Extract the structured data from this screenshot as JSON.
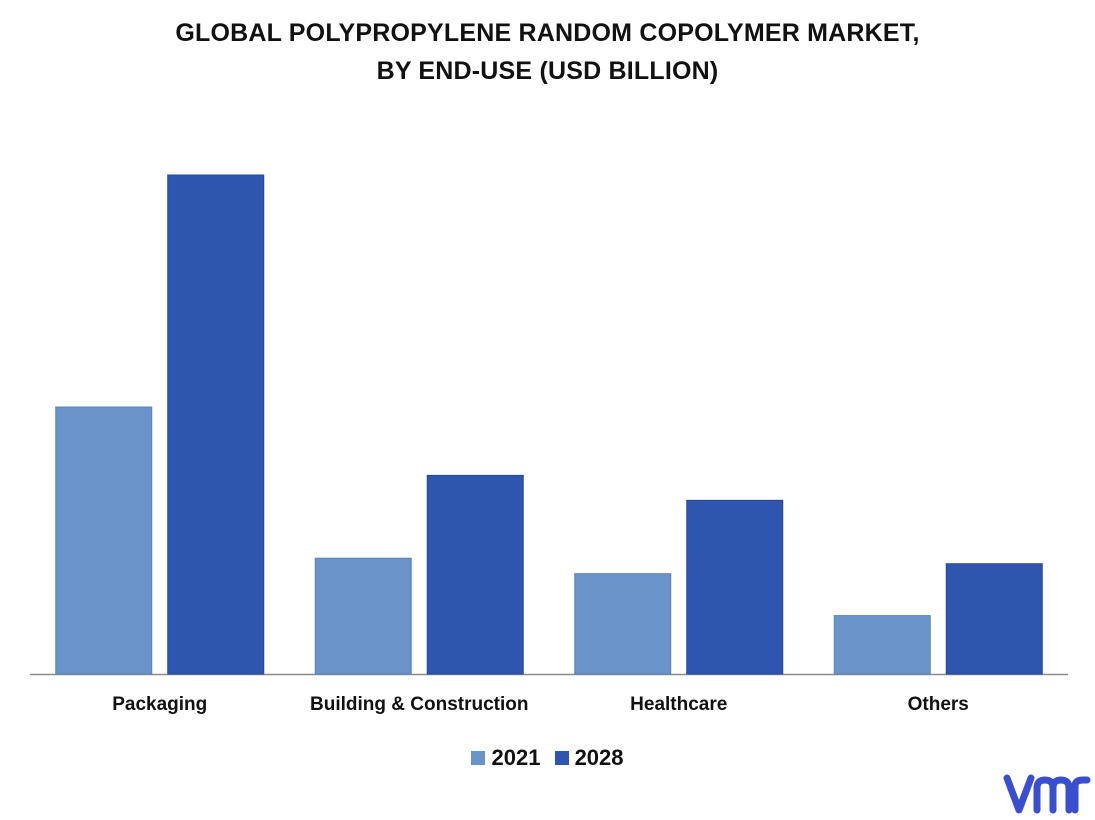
{
  "title_line1": "GLOBAL POLYPROPYLENE RANDOM COPOLYMER MARKET,",
  "title_line2": "BY END-USE (USD BILLION)",
  "colors": {
    "s2021": "#6a93c9",
    "s2028": "#2e56ae",
    "axis": "#8c8c8c",
    "logo": "#3a4fd0"
  },
  "logo_name": "vmr-logo",
  "chart_data": {
    "type": "bar",
    "title": "GLOBAL POLYPROPYLENE RANDOM COPOLYMER MARKET, BY END-USE (USD BILLION)",
    "categories": [
      "Packaging",
      "Building & Construction",
      "Healthcare",
      "Others"
    ],
    "series": [
      {
        "name": "2021",
        "values": [
          5.35,
          2.32,
          2.01,
          1.17
        ]
      },
      {
        "name": "2028",
        "values": [
          10.0,
          3.98,
          3.48,
          2.21
        ]
      }
    ],
    "ylim": [
      0,
      10
    ],
    "grid": false,
    "legend": "bottom"
  }
}
